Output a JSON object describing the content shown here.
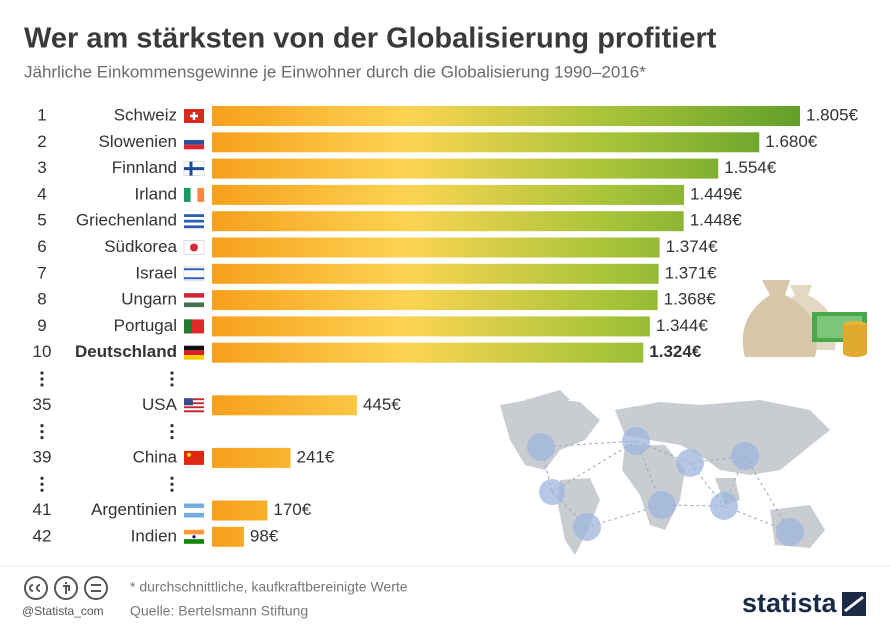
{
  "chart_data": {
    "type": "bar",
    "orientation": "horizontal",
    "title": "Wer am stärksten von der Globalisierung profitiert",
    "subtitle": "Jährliche Einkommensgewinne je Einwohner durch die Globalisierung 1990–2016*",
    "ranks": [
      1,
      2,
      3,
      4,
      5,
      6,
      7,
      8,
      9,
      10,
      35,
      39,
      41,
      42
    ],
    "categories": [
      "Schweiz",
      "Slowenien",
      "Finnland",
      "Irland",
      "Griechenland",
      "Südkorea",
      "Israel",
      "Ungarn",
      "Portugal",
      "Deutschland",
      "USA",
      "China",
      "Argentinien",
      "Indien"
    ],
    "values": [
      1805,
      1680,
      1554,
      1449,
      1448,
      1374,
      1371,
      1368,
      1344,
      1324,
      445,
      241,
      170,
      98
    ],
    "value_labels": [
      "1.805€",
      "1.680€",
      "1.554€",
      "1.449€",
      "1.448€",
      "1.374€",
      "1.371€",
      "1.368€",
      "1.344€",
      "1.324€",
      "445€",
      "241€",
      "170€",
      "98€"
    ],
    "highlight": 9,
    "gradient": [
      "#f7a01c",
      "#fcd452",
      "#a9c43a",
      "#62a02a"
    ],
    "footnote": "* durchschnittliche, kaufkraftbereinigte Werte",
    "source": "Quelle: Bertelsmann Stiftung",
    "handle": "@Statista_com",
    "brand": "statista"
  }
}
